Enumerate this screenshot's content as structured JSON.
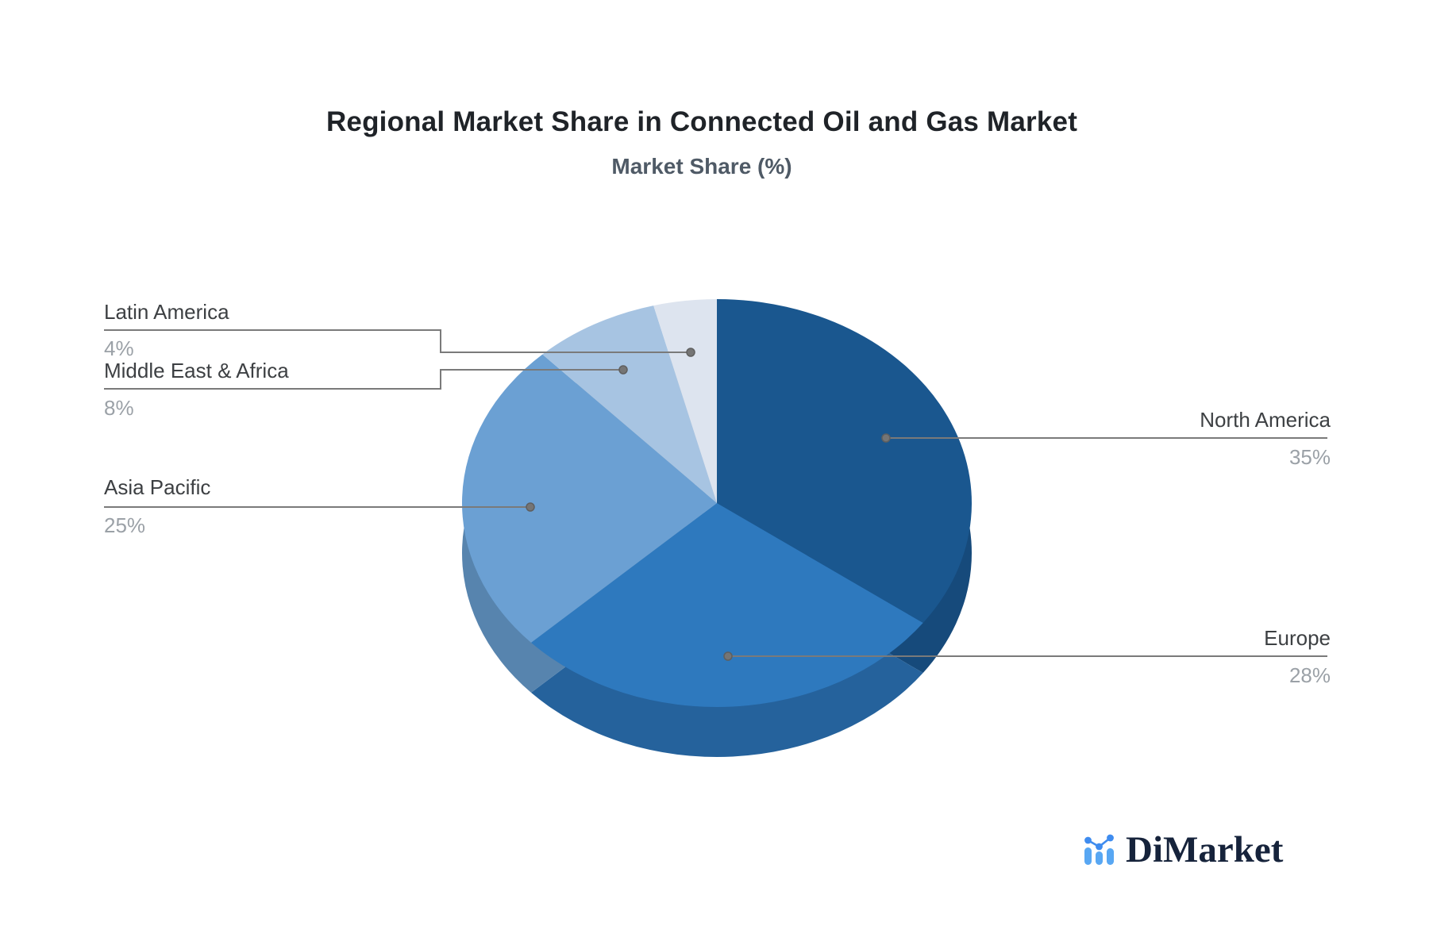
{
  "title": "Regional Market Share in Connected Oil and Gas Market",
  "subtitle": "Market Share (%)",
  "chart_data": {
    "type": "pie",
    "title": "Regional Market Share in Connected Oil and Gas Market",
    "subtitle": "Market Share (%)",
    "unit": "%",
    "direction": "clockwise",
    "start_angle_deg": 0,
    "effect_3d": true,
    "legend_position": "callout-labels",
    "categories": [
      "North America",
      "Europe",
      "Asia Pacific",
      "Middle East & Africa",
      "Latin America"
    ],
    "values": [
      35,
      28,
      25,
      8,
      4
    ],
    "display_labels": [
      "35%",
      "28%",
      "25%",
      "8%",
      "4%"
    ],
    "colors": [
      "#1A578F",
      "#2E79BE",
      "#6BA0D3",
      "#A7C4E2",
      "#DDE4EF"
    ],
    "side_colors": [
      "#164A7B",
      "#25629C",
      "#5784AE",
      "#8AA6C4",
      "#BCC7D6"
    ],
    "callout_line_color": "#7A7A7A",
    "callout_dot_color": "#757575",
    "label_text_color": "#3D4043",
    "percent_text_color": "#9BA1A7"
  },
  "logo": {
    "text": "DiMarket",
    "bar_color": "#58A7F3",
    "line_color": "#3F8CEF",
    "text_color": "#16233B"
  }
}
